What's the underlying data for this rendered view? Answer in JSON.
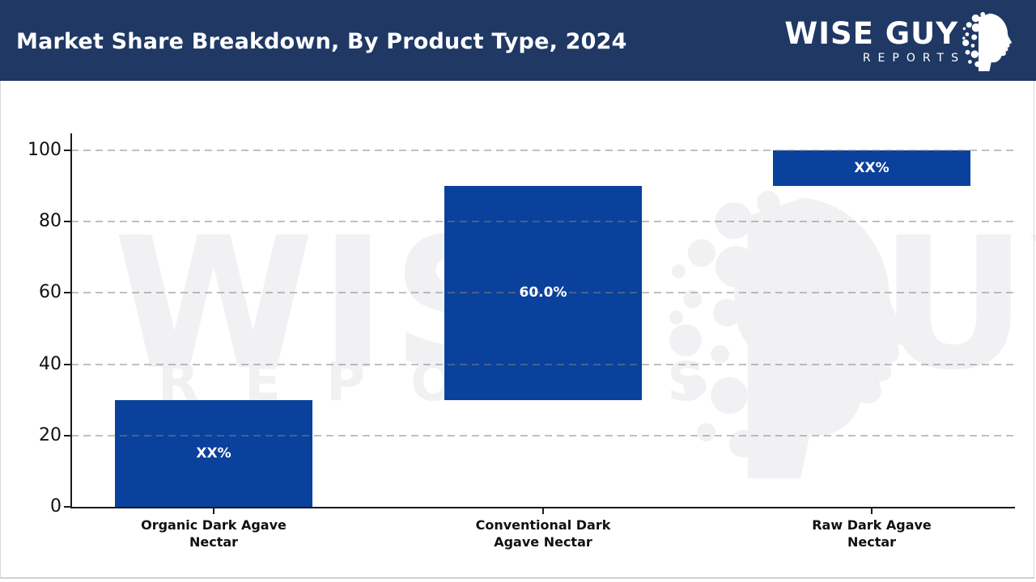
{
  "header": {
    "title": "Market Share Breakdown, By Product Type, 2024",
    "logo": {
      "line1": "WISE GUY",
      "line2": "REPORTS"
    }
  },
  "watermark": {
    "line1": "WISE GUY",
    "line2": "REPORTS"
  },
  "colors": {
    "header_navy": "#1f3864",
    "bar_blue": "#0a419c",
    "grid_gray": "#cccccc",
    "axis_black": "#1a1a1a",
    "watermark_gray": "#f1f1f3",
    "bar_label_white": "#ffffff"
  },
  "chart_data": {
    "type": "bar",
    "variant": "waterfall",
    "title": "Market Share Breakdown, By Product Type, 2024",
    "xlabel": "",
    "ylabel": "",
    "ylim": [
      0,
      100
    ],
    "yticks": [
      0,
      20,
      40,
      60,
      80,
      100
    ],
    "grid": {
      "axis": "y",
      "style": "dashed",
      "on": true,
      "drawn_over_bars": true
    },
    "legend": null,
    "bar_color": "#0a419c",
    "bar_label_color": "#ffffff",
    "categories": [
      "Organic Dark Agave Nectar",
      "Conventional Dark Agave Nectar",
      "Raw Dark Agave Nectar"
    ],
    "category_display_lines": [
      [
        "Organic Dark Agave",
        "Nectar"
      ],
      [
        "Conventional Dark",
        "Agave Nectar"
      ],
      [
        "Raw Dark Agave",
        "Nectar"
      ]
    ],
    "segments": [
      {
        "category": "Organic Dark Agave Nectar",
        "start": 0,
        "end": 30,
        "value_label": "XX%"
      },
      {
        "category": "Conventional Dark Agave Nectar",
        "start": 30,
        "end": 90,
        "value_label": "60.0%"
      },
      {
        "category": "Raw Dark Agave Nectar",
        "start": 90,
        "end": 100,
        "value_label": "XX%"
      }
    ]
  }
}
